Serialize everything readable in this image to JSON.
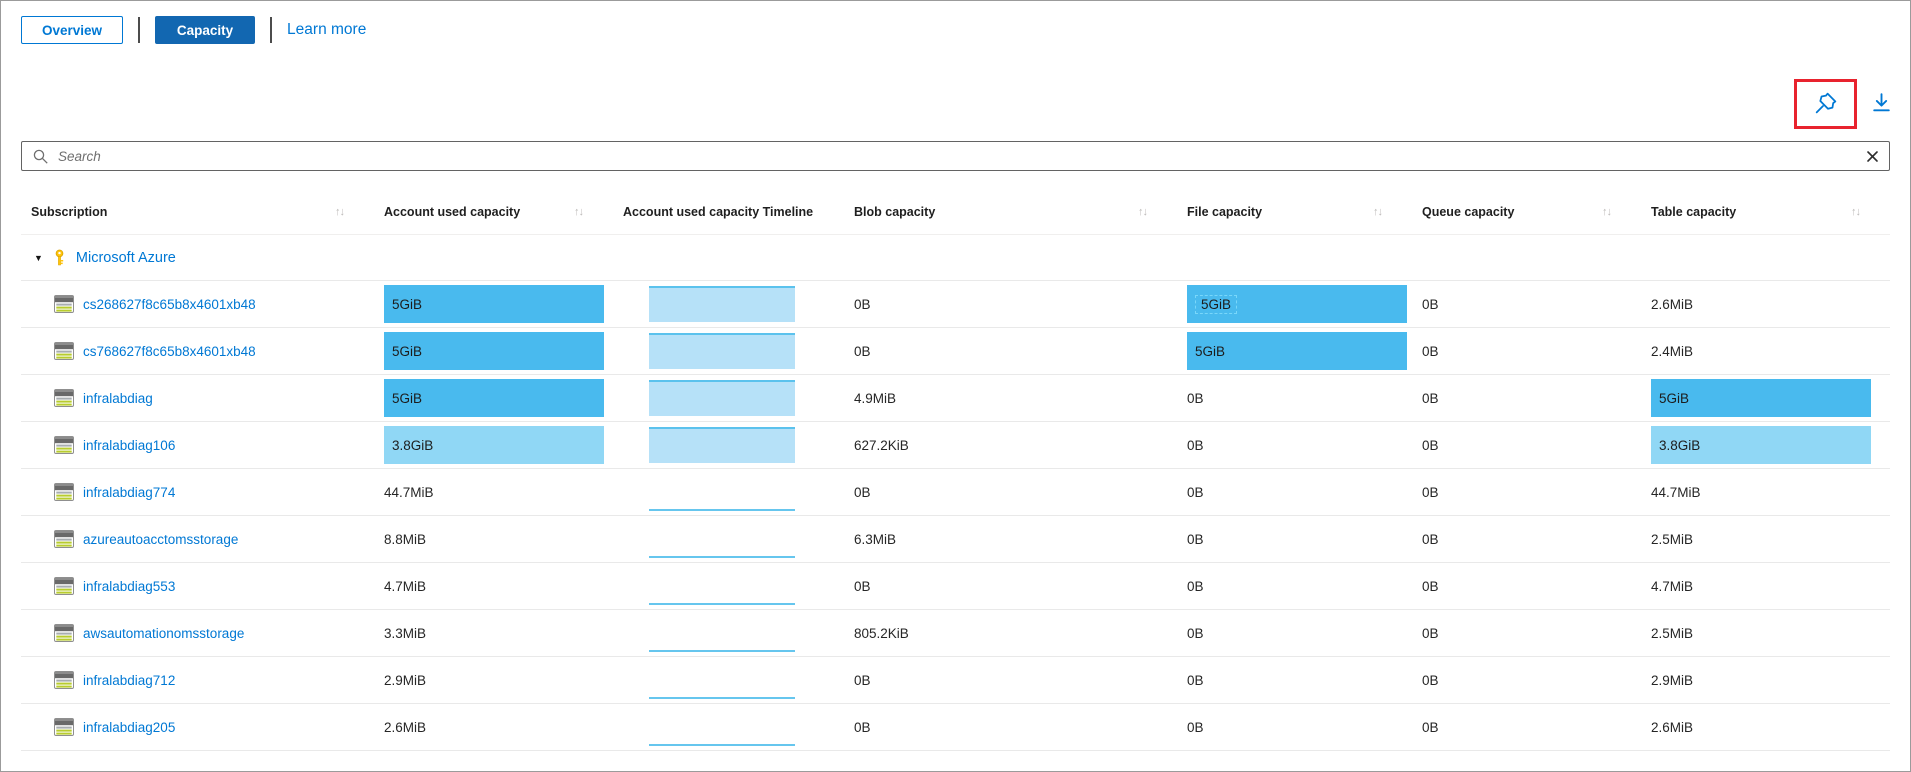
{
  "tabs": {
    "overview_label": "Overview",
    "capacity_label": "Capacity",
    "learn_more_label": "Learn more"
  },
  "toolbar": {
    "pin_icon": "pushpin",
    "download_icon": "download-arrow",
    "pin_highlighted": true
  },
  "search": {
    "placeholder": "Search",
    "value": "",
    "search_icon": "magnifier",
    "clear_icon": "x-cross"
  },
  "table": {
    "columns": [
      {
        "label": "Subscription",
        "sortable": true
      },
      {
        "label": "Account used capacity",
        "sortable": true
      },
      {
        "label": "Account used capacity Timeline",
        "sortable": false
      },
      {
        "label": "Blob capacity",
        "sortable": true
      },
      {
        "label": "File capacity",
        "sortable": true
      },
      {
        "label": "Queue capacity",
        "sortable": true
      },
      {
        "label": "Table capacity",
        "sortable": true
      }
    ],
    "sort_glyph": "↑↓",
    "group": {
      "label": "Microsoft Azure",
      "expanded": true,
      "caret_glyph": "▼",
      "icon": "key"
    },
    "rows": [
      {
        "name": "cs268627f8c65b8x4601xb48",
        "account_used": {
          "text": "5GiB",
          "bar": "dark"
        },
        "timeline": "high",
        "blob": {
          "text": "0B"
        },
        "file": {
          "text": "5GiB",
          "bar": "dark",
          "focused": true
        },
        "queue": {
          "text": "0B"
        },
        "tablecap": {
          "text": "2.6MiB"
        }
      },
      {
        "name": "cs768627f8c65b8x4601xb48",
        "account_used": {
          "text": "5GiB",
          "bar": "dark"
        },
        "timeline": "high",
        "blob": {
          "text": "0B"
        },
        "file": {
          "text": "5GiB",
          "bar": "dark"
        },
        "queue": {
          "text": "0B"
        },
        "tablecap": {
          "text": "2.4MiB"
        }
      },
      {
        "name": "infralabdiag",
        "account_used": {
          "text": "5GiB",
          "bar": "dark"
        },
        "timeline": "high",
        "blob": {
          "text": "4.9MiB"
        },
        "file": {
          "text": "0B"
        },
        "queue": {
          "text": "0B"
        },
        "tablecap": {
          "text": "5GiB",
          "bar": "dark"
        }
      },
      {
        "name": "infralabdiag106",
        "account_used": {
          "text": "3.8GiB",
          "bar": "light"
        },
        "timeline": "high",
        "blob": {
          "text": "627.2KiB"
        },
        "file": {
          "text": "0B"
        },
        "queue": {
          "text": "0B"
        },
        "tablecap": {
          "text": "3.8GiB",
          "bar": "light"
        }
      },
      {
        "name": "infralabdiag774",
        "account_used": {
          "text": "44.7MiB"
        },
        "timeline": "low",
        "blob": {
          "text": "0B"
        },
        "file": {
          "text": "0B"
        },
        "queue": {
          "text": "0B"
        },
        "tablecap": {
          "text": "44.7MiB"
        }
      },
      {
        "name": "azureautoacctomsstorage",
        "account_used": {
          "text": "8.8MiB"
        },
        "timeline": "low",
        "blob": {
          "text": "6.3MiB"
        },
        "file": {
          "text": "0B"
        },
        "queue": {
          "text": "0B"
        },
        "tablecap": {
          "text": "2.5MiB"
        }
      },
      {
        "name": "infralabdiag553",
        "account_used": {
          "text": "4.7MiB"
        },
        "timeline": "low",
        "blob": {
          "text": "0B"
        },
        "file": {
          "text": "0B"
        },
        "queue": {
          "text": "0B"
        },
        "tablecap": {
          "text": "4.7MiB"
        }
      },
      {
        "name": "awsautomationomsstorage",
        "account_used": {
          "text": "3.3MiB"
        },
        "timeline": "low",
        "blob": {
          "text": "805.2KiB"
        },
        "file": {
          "text": "0B"
        },
        "queue": {
          "text": "0B"
        },
        "tablecap": {
          "text": "2.5MiB"
        }
      },
      {
        "name": "infralabdiag712",
        "account_used": {
          "text": "2.9MiB"
        },
        "timeline": "low",
        "blob": {
          "text": "0B"
        },
        "file": {
          "text": "0B"
        },
        "queue": {
          "text": "0B"
        },
        "tablecap": {
          "text": "2.9MiB"
        }
      },
      {
        "name": "infralabdiag205",
        "account_used": {
          "text": "2.6MiB"
        },
        "timeline": "low",
        "blob": {
          "text": "0B"
        },
        "file": {
          "text": "0B"
        },
        "queue": {
          "text": "0B"
        },
        "tablecap": {
          "text": "2.6MiB"
        }
      }
    ]
  },
  "colors": {
    "accent_blue": "#0078d4",
    "capacity_button_bg": "#1267b1",
    "bar_dark_blue": "#49baee",
    "bar_light_blue": "#90d7f5",
    "timeline_fill": "#b6e1f8",
    "timeline_line": "#5bc2ed",
    "highlight_red": "#e8232e",
    "key_icon_gold": "#ffc40c",
    "storage_icon_green": "#b8cc2e"
  }
}
